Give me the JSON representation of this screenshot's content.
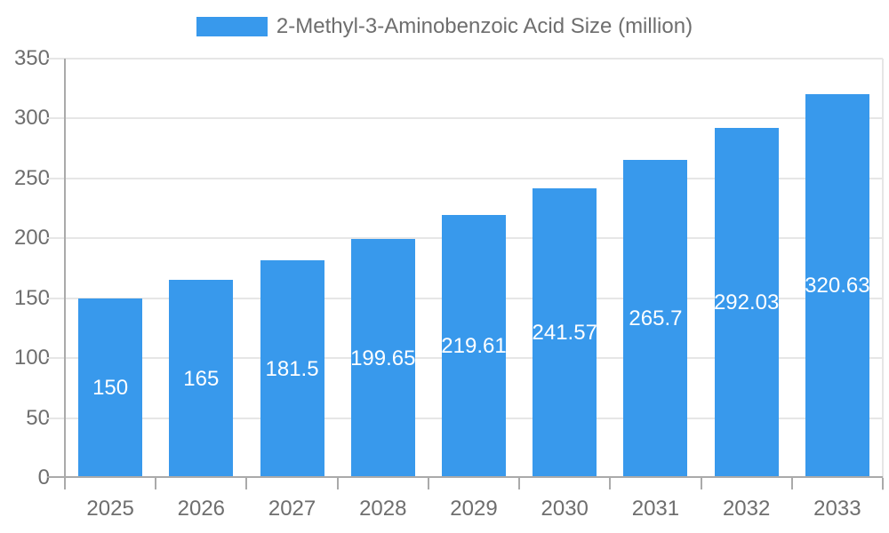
{
  "legend": {
    "label": "2-Methyl-3-Aminobenzoic Acid Size (million)"
  },
  "chart_data": {
    "type": "bar",
    "title": "2-Methyl-3-Aminobenzoic Acid Size (million)",
    "categories": [
      "2025",
      "2026",
      "2027",
      "2028",
      "2029",
      "2030",
      "2031",
      "2032",
      "2033"
    ],
    "values": [
      150,
      165,
      181.5,
      199.65,
      219.61,
      241.57,
      265.7,
      292.03,
      320.63
    ],
    "series": [
      {
        "name": "2-Methyl-3-Aminobenzoic Acid Size (million)",
        "values": [
          150,
          165,
          181.5,
          199.65,
          219.61,
          241.57,
          265.7,
          292.03,
          320.63
        ]
      }
    ],
    "xlabel": "",
    "ylabel": "",
    "ylim": [
      0,
      350
    ],
    "yticks": [
      0,
      50,
      100,
      150,
      200,
      250,
      300,
      350
    ],
    "grid": true,
    "legend_position": "top",
    "value_labels_position": "inside-center",
    "colors": {
      "bar": "#3899EC",
      "grid": "#E6E6E6",
      "axis": "#AAAAAA",
      "tick_text": "#6E6E6E",
      "bar_label_text": "#FFFFFF",
      "background": "#FFFFFF"
    }
  }
}
